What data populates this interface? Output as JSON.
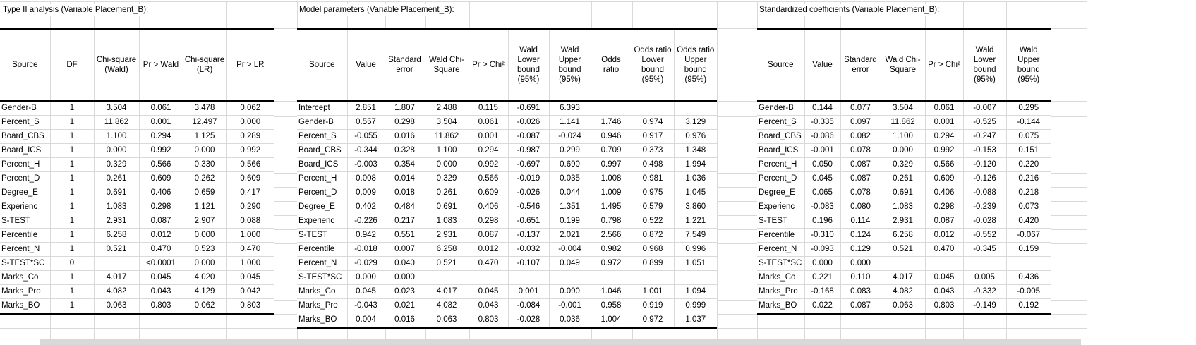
{
  "colors": {
    "gridline": "#d9d9d9",
    "table_border": "#000000",
    "text": "#000000",
    "bottom_strip": "#d9d9d9"
  },
  "tables": [
    {
      "title": "Type II analysis (Variable Placement_B):",
      "columns": [
        "Source",
        "DF",
        "Chi-square (Wald)",
        "Pr > Wald",
        "Chi-square (LR)",
        "Pr > LR"
      ],
      "rows": [
        [
          "Gender-B",
          "1",
          "3.504",
          "0.061",
          "3.478",
          "0.062"
        ],
        [
          "Percent_S",
          "1",
          "11.862",
          "0.001",
          "12.497",
          "0.000"
        ],
        [
          "Board_CBS",
          "1",
          "1.100",
          "0.294",
          "1.125",
          "0.289"
        ],
        [
          "Board_ICS",
          "1",
          "0.000",
          "0.992",
          "0.000",
          "0.992"
        ],
        [
          "Percent_H",
          "1",
          "0.329",
          "0.566",
          "0.330",
          "0.566"
        ],
        [
          "Percent_D",
          "1",
          "0.261",
          "0.609",
          "0.262",
          "0.609"
        ],
        [
          "Degree_E",
          "1",
          "0.691",
          "0.406",
          "0.659",
          "0.417"
        ],
        [
          "Experienc",
          "1",
          "1.083",
          "0.298",
          "1.121",
          "0.290"
        ],
        [
          "S-TEST",
          "1",
          "2.931",
          "0.087",
          "2.907",
          "0.088"
        ],
        [
          "Percentile",
          "1",
          "6.258",
          "0.012",
          "0.000",
          "1.000"
        ],
        [
          "Percent_N",
          "1",
          "0.521",
          "0.470",
          "0.523",
          "0.470"
        ],
        [
          "S-TEST*SC",
          "0",
          "",
          "<0.0001",
          "0.000",
          "1.000"
        ],
        [
          "Marks_Co",
          "1",
          "4.017",
          "0.045",
          "4.020",
          "0.045"
        ],
        [
          "Marks_Pro",
          "1",
          "4.082",
          "0.043",
          "4.129",
          "0.042"
        ],
        [
          "Marks_BO",
          "1",
          "0.063",
          "0.803",
          "0.062",
          "0.803"
        ]
      ]
    },
    {
      "title": "Model parameters (Variable Placement_B):",
      "columns": [
        "Source",
        "Value",
        "Standard error",
        "Wald Chi-Square",
        "Pr > Chi²",
        "Wald Lower bound (95%)",
        "Wald Upper bound (95%)",
        "Odds ratio",
        "Odds ratio Lower bound (95%)",
        "Odds ratio Upper bound (95%)"
      ],
      "rows": [
        [
          "Intercept",
          "2.851",
          "1.807",
          "2.488",
          "0.115",
          "-0.691",
          "6.393",
          "",
          "",
          ""
        ],
        [
          "Gender-B",
          "0.557",
          "0.298",
          "3.504",
          "0.061",
          "-0.026",
          "1.141",
          "1.746",
          "0.974",
          "3.129"
        ],
        [
          "Percent_S",
          "-0.055",
          "0.016",
          "11.862",
          "0.001",
          "-0.087",
          "-0.024",
          "0.946",
          "0.917",
          "0.976"
        ],
        [
          "Board_CBS",
          "-0.344",
          "0.328",
          "1.100",
          "0.294",
          "-0.987",
          "0.299",
          "0.709",
          "0.373",
          "1.348"
        ],
        [
          "Board_ICS",
          "-0.003",
          "0.354",
          "0.000",
          "0.992",
          "-0.697",
          "0.690",
          "0.997",
          "0.498",
          "1.994"
        ],
        [
          "Percent_H",
          "0.008",
          "0.014",
          "0.329",
          "0.566",
          "-0.019",
          "0.035",
          "1.008",
          "0.981",
          "1.036"
        ],
        [
          "Percent_D",
          "0.009",
          "0.018",
          "0.261",
          "0.609",
          "-0.026",
          "0.044",
          "1.009",
          "0.975",
          "1.045"
        ],
        [
          "Degree_E",
          "0.402",
          "0.484",
          "0.691",
          "0.406",
          "-0.546",
          "1.351",
          "1.495",
          "0.579",
          "3.860"
        ],
        [
          "Experienc",
          "-0.226",
          "0.217",
          "1.083",
          "0.298",
          "-0.651",
          "0.199",
          "0.798",
          "0.522",
          "1.221"
        ],
        [
          "S-TEST",
          "0.942",
          "0.551",
          "2.931",
          "0.087",
          "-0.137",
          "2.021",
          "2.566",
          "0.872",
          "7.549"
        ],
        [
          "Percentile",
          "-0.018",
          "0.007",
          "6.258",
          "0.012",
          "-0.032",
          "-0.004",
          "0.982",
          "0.968",
          "0.996"
        ],
        [
          "Percent_N",
          "-0.029",
          "0.040",
          "0.521",
          "0.470",
          "-0.107",
          "0.049",
          "0.972",
          "0.899",
          "1.051"
        ],
        [
          "S-TEST*SC",
          "0.000",
          "0.000",
          "",
          "",
          "",
          "",
          "",
          "",
          ""
        ],
        [
          "Marks_Co",
          "0.045",
          "0.023",
          "4.017",
          "0.045",
          "0.001",
          "0.090",
          "1.046",
          "1.001",
          "1.094"
        ],
        [
          "Marks_Pro",
          "-0.043",
          "0.021",
          "4.082",
          "0.043",
          "-0.084",
          "-0.001",
          "0.958",
          "0.919",
          "0.999"
        ],
        [
          "Marks_BO",
          "0.004",
          "0.016",
          "0.063",
          "0.803",
          "-0.028",
          "0.036",
          "1.004",
          "0.972",
          "1.037"
        ]
      ]
    },
    {
      "title": "Standardized coefficients (Variable Placement_B):",
      "columns": [
        "Source",
        "Value",
        "Standard error",
        "Wald Chi-Square",
        "Pr > Chi²",
        "Wald Lower bound (95%)",
        "Wald Upper bound (95%)"
      ],
      "rows": [
        [
          "Gender-B",
          "0.144",
          "0.077",
          "3.504",
          "0.061",
          "-0.007",
          "0.295"
        ],
        [
          "Percent_S",
          "-0.335",
          "0.097",
          "11.862",
          "0.001",
          "-0.525",
          "-0.144"
        ],
        [
          "Board_CBS",
          "-0.086",
          "0.082",
          "1.100",
          "0.294",
          "-0.247",
          "0.075"
        ],
        [
          "Board_ICS",
          "-0.001",
          "0.078",
          "0.000",
          "0.992",
          "-0.153",
          "0.151"
        ],
        [
          "Percent_H",
          "0.050",
          "0.087",
          "0.329",
          "0.566",
          "-0.120",
          "0.220"
        ],
        [
          "Percent_D",
          "0.045",
          "0.087",
          "0.261",
          "0.609",
          "-0.126",
          "0.216"
        ],
        [
          "Degree_E",
          "0.065",
          "0.078",
          "0.691",
          "0.406",
          "-0.088",
          "0.218"
        ],
        [
          "Experienc",
          "-0.083",
          "0.080",
          "1.083",
          "0.298",
          "-0.239",
          "0.073"
        ],
        [
          "S-TEST",
          "0.196",
          "0.114",
          "2.931",
          "0.087",
          "-0.028",
          "0.420"
        ],
        [
          "Percentile",
          "-0.310",
          "0.124",
          "6.258",
          "0.012",
          "-0.552",
          "-0.067"
        ],
        [
          "Percent_N",
          "-0.093",
          "0.129",
          "0.521",
          "0.470",
          "-0.345",
          "0.159"
        ],
        [
          "S-TEST*SC",
          "0.000",
          "0.000",
          "",
          "",
          "",
          ""
        ],
        [
          "Marks_Co",
          "0.221",
          "0.110",
          "4.017",
          "0.045",
          "0.005",
          "0.436"
        ],
        [
          "Marks_Pro",
          "-0.168",
          "0.083",
          "4.082",
          "0.043",
          "-0.332",
          "-0.005"
        ],
        [
          "Marks_BO",
          "0.022",
          "0.087",
          "0.063",
          "0.803",
          "-0.149",
          "0.192"
        ]
      ]
    }
  ]
}
